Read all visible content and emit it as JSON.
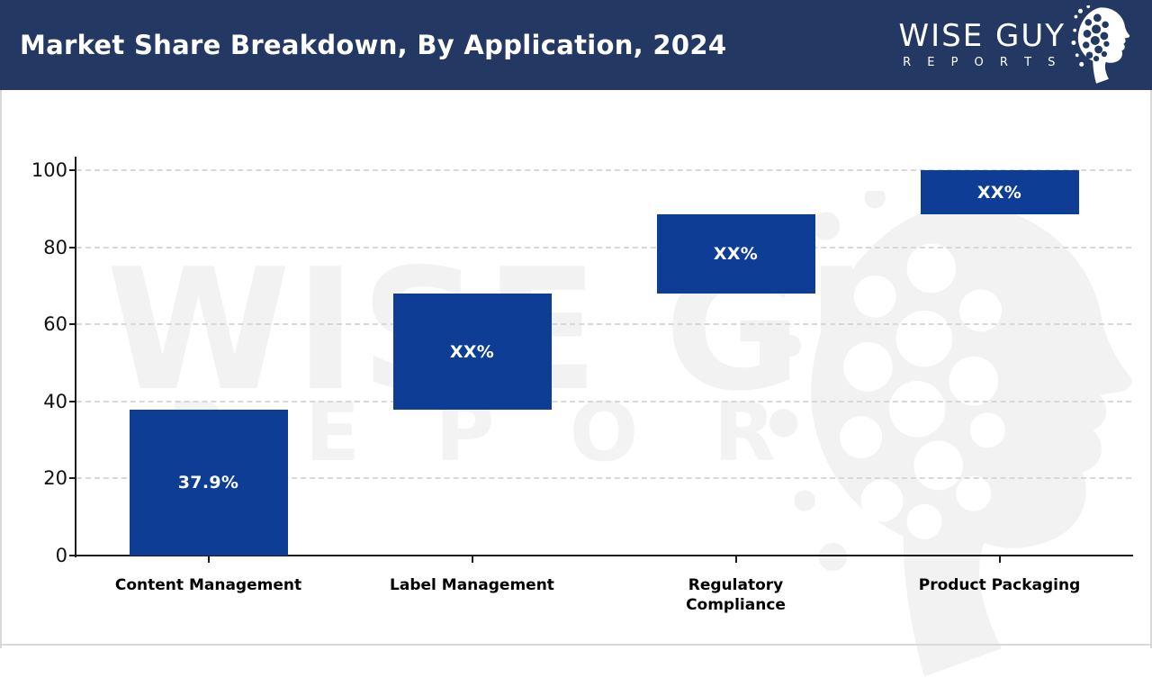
{
  "header": {
    "title": "Market Share Breakdown, By Application, 2024",
    "brand": {
      "line1": "WISE GUY",
      "line2": "R E P O R T S"
    }
  },
  "watermark": {
    "line1": "WISE GUY",
    "line2": "R E P O R T S"
  },
  "colors": {
    "header_bg": "#233963",
    "bar": "#0d3d94",
    "grid": "#d8d8d8",
    "axis": "#1a1a1a",
    "bar_label": "#ffffff",
    "watermark": "#f2f2f2"
  },
  "chart_data": {
    "type": "bar",
    "subtype": "waterfall",
    "title": "Market Share Breakdown, By Application, 2024",
    "categories": [
      "Content Management",
      "Label Management",
      "Regulatory Compliance",
      "Product Packaging"
    ],
    "segments": [
      {
        "category": "Content Management",
        "axis_label": "Content Management",
        "start": 0,
        "end": 37.9,
        "height": 37.9,
        "value_label": "37.9%"
      },
      {
        "category": "Label Management",
        "axis_label": "Label Management",
        "start": 37.9,
        "end": 67.9,
        "height": 30.0,
        "value_label": "XX%"
      },
      {
        "category": "Regulatory Compliance",
        "axis_label": "Regulatory\nCompliance",
        "start": 67.9,
        "end": 88.5,
        "height": 20.6,
        "value_label": "XX%"
      },
      {
        "category": "Product Packaging",
        "axis_label": "Product Packaging",
        "start": 88.5,
        "end": 100,
        "height": 11.5,
        "value_label": "XX%"
      }
    ],
    "xlabel": "",
    "ylabel": "",
    "yticks": [
      0,
      20,
      40,
      60,
      80,
      100
    ],
    "ylim": [
      0,
      103.5
    ],
    "grid": "horizontal-dashed",
    "legend": "none",
    "bar_color": "#0d3d94"
  }
}
